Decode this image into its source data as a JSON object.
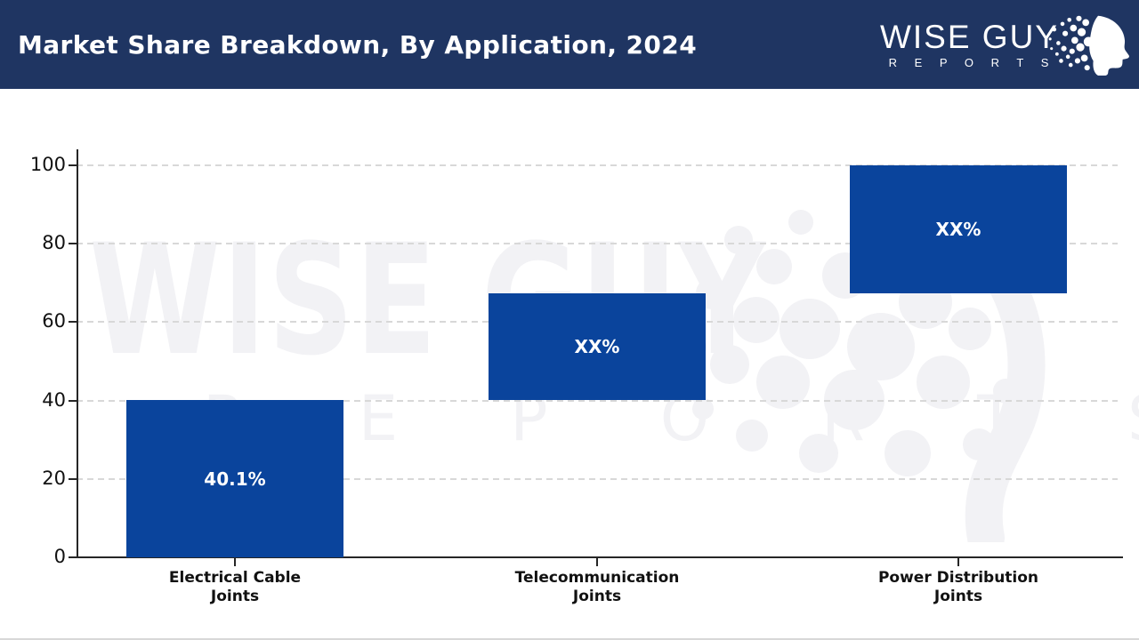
{
  "header": {
    "title": "Market Share Breakdown, By Application, 2024",
    "bg_color": "#1f3562",
    "logo": {
      "line1": "WISE GUY",
      "line2": "R E P O R T S"
    }
  },
  "watermark": {
    "line1": "WISE GUY",
    "line2": "R E P O R T S"
  },
  "chart_data": {
    "type": "bar",
    "subtype": "floating-segment-percentage-bars",
    "title": "Market Share Breakdown, By Application, 2024",
    "categories": [
      "Electrical Cable Joints",
      "Telecommunication Joints",
      "Power Distribution Joints"
    ],
    "bars": [
      {
        "lines": [
          "Electrical Cable",
          "Joints"
        ],
        "start": 0,
        "end": 40.1,
        "label": "40.1%"
      },
      {
        "lines": [
          "Telecommunication",
          "Joints"
        ],
        "start": 40.1,
        "end": 67.3,
        "label": "XX%"
      },
      {
        "lines": [
          "Power Distribution",
          "Joints"
        ],
        "start": 67.3,
        "end": 100,
        "label": "XX%"
      }
    ],
    "y_ticks": [
      0,
      20,
      40,
      60,
      80,
      100
    ],
    "ylim": [
      0,
      105
    ],
    "xlabel": "",
    "ylabel": "",
    "grid": true,
    "gridline_style": "dashed",
    "legend": false,
    "bar_color": "#0a449c",
    "bar_label_color": "#ffffff",
    "axis_color": "#262626",
    "grid_color": "#d8d8d8",
    "tick_label_color": "#111111"
  }
}
